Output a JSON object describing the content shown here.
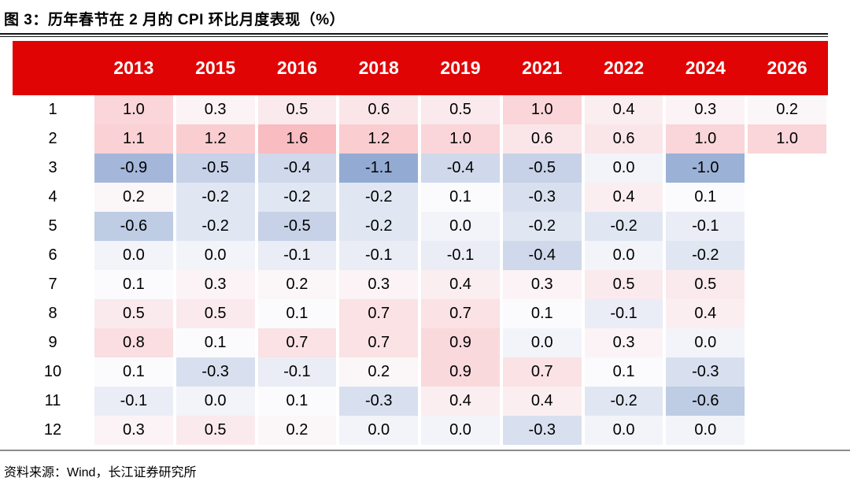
{
  "title": "图 3：历年春节在 2 月的 CPI 环比月度表现（%）",
  "source": "资料来源：Wind，长江证券研究所",
  "colors": {
    "header_bg": "#e00404",
    "header_text": "#ffffff",
    "scale_negative": "#6788c1",
    "scale_neutral": "#fbfbfd",
    "scale_positive": "#f9bcc1",
    "scale_domain": [
      -1.6,
      0.1,
      1.6
    ],
    "title_rule": "#151515",
    "footer_rule": "#8c8c8c",
    "cell_text": "#000000"
  },
  "chart_data": {
    "type": "heatmap",
    "title": "图 3：历年春节在 2 月的 CPI 环比月度表现（%）",
    "columns": [
      "2013",
      "2015",
      "2016",
      "2018",
      "2019",
      "2021",
      "2022",
      "2024",
      "2026"
    ],
    "rows": [
      "1",
      "2",
      "3",
      "4",
      "5",
      "6",
      "7",
      "8",
      "9",
      "10",
      "11",
      "12"
    ],
    "unit": "%",
    "values": [
      [
        1.0,
        0.3,
        0.5,
        0.6,
        0.5,
        1.0,
        0.4,
        0.3,
        0.2
      ],
      [
        1.1,
        1.2,
        1.6,
        1.2,
        1.0,
        0.6,
        0.6,
        1.0,
        1.0
      ],
      [
        -0.9,
        -0.5,
        -0.4,
        -1.1,
        -0.4,
        -0.5,
        0.0,
        -1.0,
        null
      ],
      [
        0.2,
        -0.2,
        -0.2,
        -0.2,
        0.1,
        -0.3,
        0.4,
        0.1,
        null
      ],
      [
        -0.6,
        -0.2,
        -0.5,
        -0.2,
        0.0,
        -0.2,
        -0.2,
        -0.1,
        null
      ],
      [
        0.0,
        0.0,
        -0.1,
        -0.1,
        -0.1,
        -0.4,
        0.0,
        -0.2,
        null
      ],
      [
        0.1,
        0.3,
        0.2,
        0.3,
        0.4,
        0.3,
        0.5,
        0.5,
        null
      ],
      [
        0.5,
        0.5,
        0.1,
        0.7,
        0.7,
        0.1,
        -0.1,
        0.4,
        null
      ],
      [
        0.8,
        0.1,
        0.7,
        0.7,
        0.9,
        0.0,
        0.3,
        0.0,
        null
      ],
      [
        0.1,
        -0.3,
        -0.1,
        0.2,
        0.9,
        0.7,
        0.1,
        -0.3,
        null
      ],
      [
        -0.1,
        0.0,
        0.1,
        -0.3,
        0.4,
        0.4,
        -0.2,
        -0.6,
        null
      ],
      [
        0.3,
        0.5,
        0.2,
        0.0,
        0.0,
        -0.3,
        0.0,
        0.0,
        null
      ]
    ],
    "legend_position": "none",
    "grid": false
  }
}
